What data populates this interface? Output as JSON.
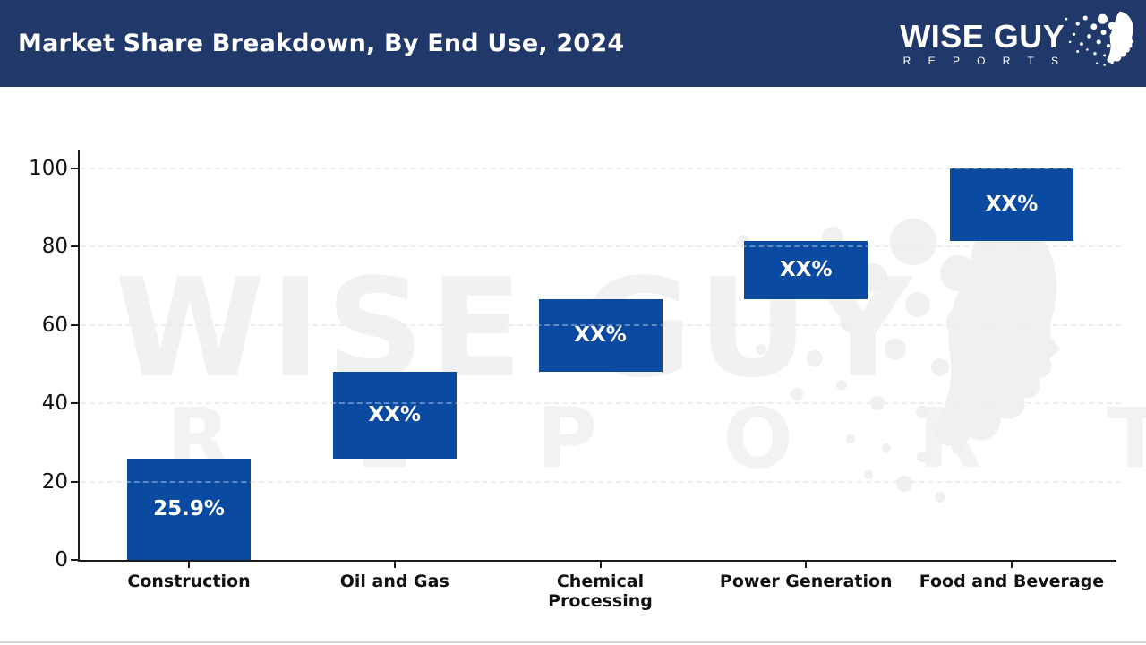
{
  "header": {
    "title": "Market Share Breakdown, By End Use, 2024",
    "logo": {
      "line1": "WISE GUY",
      "line2": "R E P O R T S"
    }
  },
  "watermark": {
    "line1": "WISE GUY",
    "line2": "R E P O R T S"
  },
  "colors": {
    "header_bg": "#21386B",
    "bar": "#0B4AA1",
    "bar_label": "#FFFFFF",
    "axis": "#1A1A1A",
    "grid": "#E3E3E3",
    "watermark": "#F1F1F1"
  },
  "chart_data": {
    "type": "bar",
    "subtype": "waterfall-floating-bars",
    "title": "Market Share Breakdown, By End Use, 2024",
    "xlabel": "",
    "ylabel": "",
    "ylim": [
      0,
      104
    ],
    "yticks": [
      0,
      20,
      40,
      60,
      80,
      100
    ],
    "grid": "horizontal-dashed",
    "legend": "none",
    "categories": [
      "Construction",
      "Oil and Gas",
      "Chemical\nProcessing",
      "Power Generation",
      "Food and Beverage"
    ],
    "segments": [
      {
        "category": "Construction",
        "start": 0,
        "end": 25.9,
        "label": "25.9%"
      },
      {
        "category": "Oil and Gas",
        "start": 25.9,
        "end": 48.1,
        "label": "XX%"
      },
      {
        "category": "Chemical Processing",
        "start": 48.1,
        "end": 66.6,
        "label": "XX%"
      },
      {
        "category": "Power Generation",
        "start": 66.6,
        "end": 81.4,
        "label": "XX%"
      },
      {
        "category": "Food and Beverage",
        "start": 81.4,
        "end": 100,
        "label": "XX%"
      }
    ]
  }
}
